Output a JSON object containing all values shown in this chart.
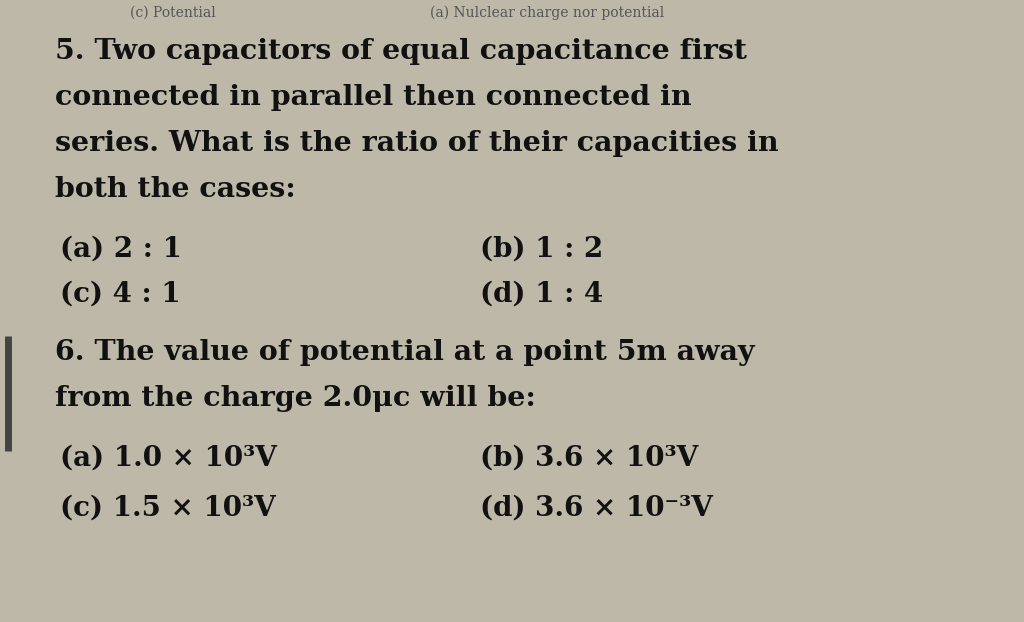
{
  "background_color": "#bdb8a8",
  "text_color": "#111111",
  "top_text_left": "(c) Potential",
  "top_text_right": "(a) Nulclear charge nor potential",
  "q5_line1": "5. Two capacitors of equal capacitance first",
  "q5_line2": "connected in parallel then connected in",
  "q5_line3": "series. What is the ratio of their capacities in",
  "q5_line4": "both the cases:",
  "q5_a": "(a) 2 : 1",
  "q5_b": "(b) 1 : 2",
  "q5_c": "(c) 4 : 1",
  "q5_d": "(d) 1 : 4",
  "q6_line1": "6. The value of potential at a point 5m away",
  "q6_line2": "from the charge 2.0μc will be:",
  "q6_a": "(a) 1.0 × 10³V",
  "q6_b": "(b) 3.6 × 10³V",
  "q6_c": "(c) 1.5 × 10³V",
  "q6_d": "(d) 3.6 × 10⁻³V",
  "fig_width": 10.24,
  "fig_height": 6.22,
  "dpi": 100
}
